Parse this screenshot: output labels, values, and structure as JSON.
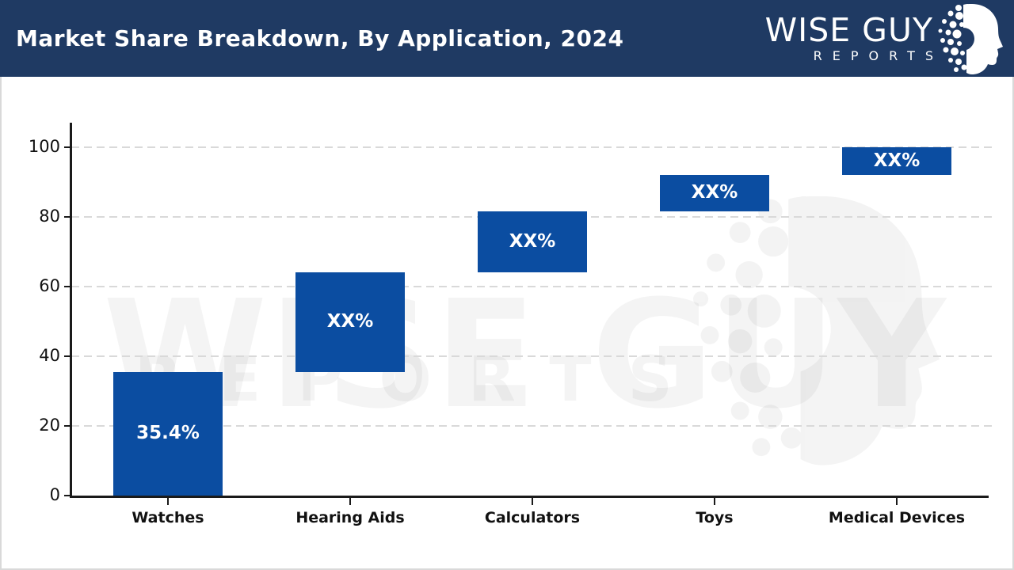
{
  "header": {
    "title": "Market Share Breakdown, By Application, 2024",
    "logo": {
      "line1": "WISE GUY",
      "line2": "REPORTS"
    }
  },
  "watermark": {
    "line1": "WISE GUY",
    "line2": "REPORTS"
  },
  "colors": {
    "header_bg": "#1f3a63",
    "bar": "#0b4da1",
    "grid": "#d9d9d9",
    "axis": "#1a1a1a",
    "bar_label": "#ffffff"
  },
  "chart_data": {
    "type": "bar",
    "subtype": "waterfall-cumulative",
    "title": "Market Share Breakdown, By Application, 2024",
    "categories": [
      "Watches",
      "Hearing Aids",
      "Calculators",
      "Toys",
      "Medical Devices"
    ],
    "segments": [
      {
        "category": "Watches",
        "start": 0,
        "end": 35.4,
        "label": "35.4%"
      },
      {
        "category": "Hearing Aids",
        "start": 35.4,
        "end": 64.0,
        "label": "XX%"
      },
      {
        "category": "Calculators",
        "start": 64.0,
        "end": 81.7,
        "label": "XX%"
      },
      {
        "category": "Toys",
        "start": 81.7,
        "end": 92.1,
        "label": "XX%"
      },
      {
        "category": "Medical Devices",
        "start": 92.1,
        "end": 100,
        "label": "XX%"
      }
    ],
    "xlabel": "",
    "ylabel": "",
    "ylim": [
      0,
      100
    ],
    "yticks": [
      0,
      20,
      40,
      60,
      80,
      100
    ],
    "grid": "horizontal-dashed",
    "legend": "none"
  }
}
